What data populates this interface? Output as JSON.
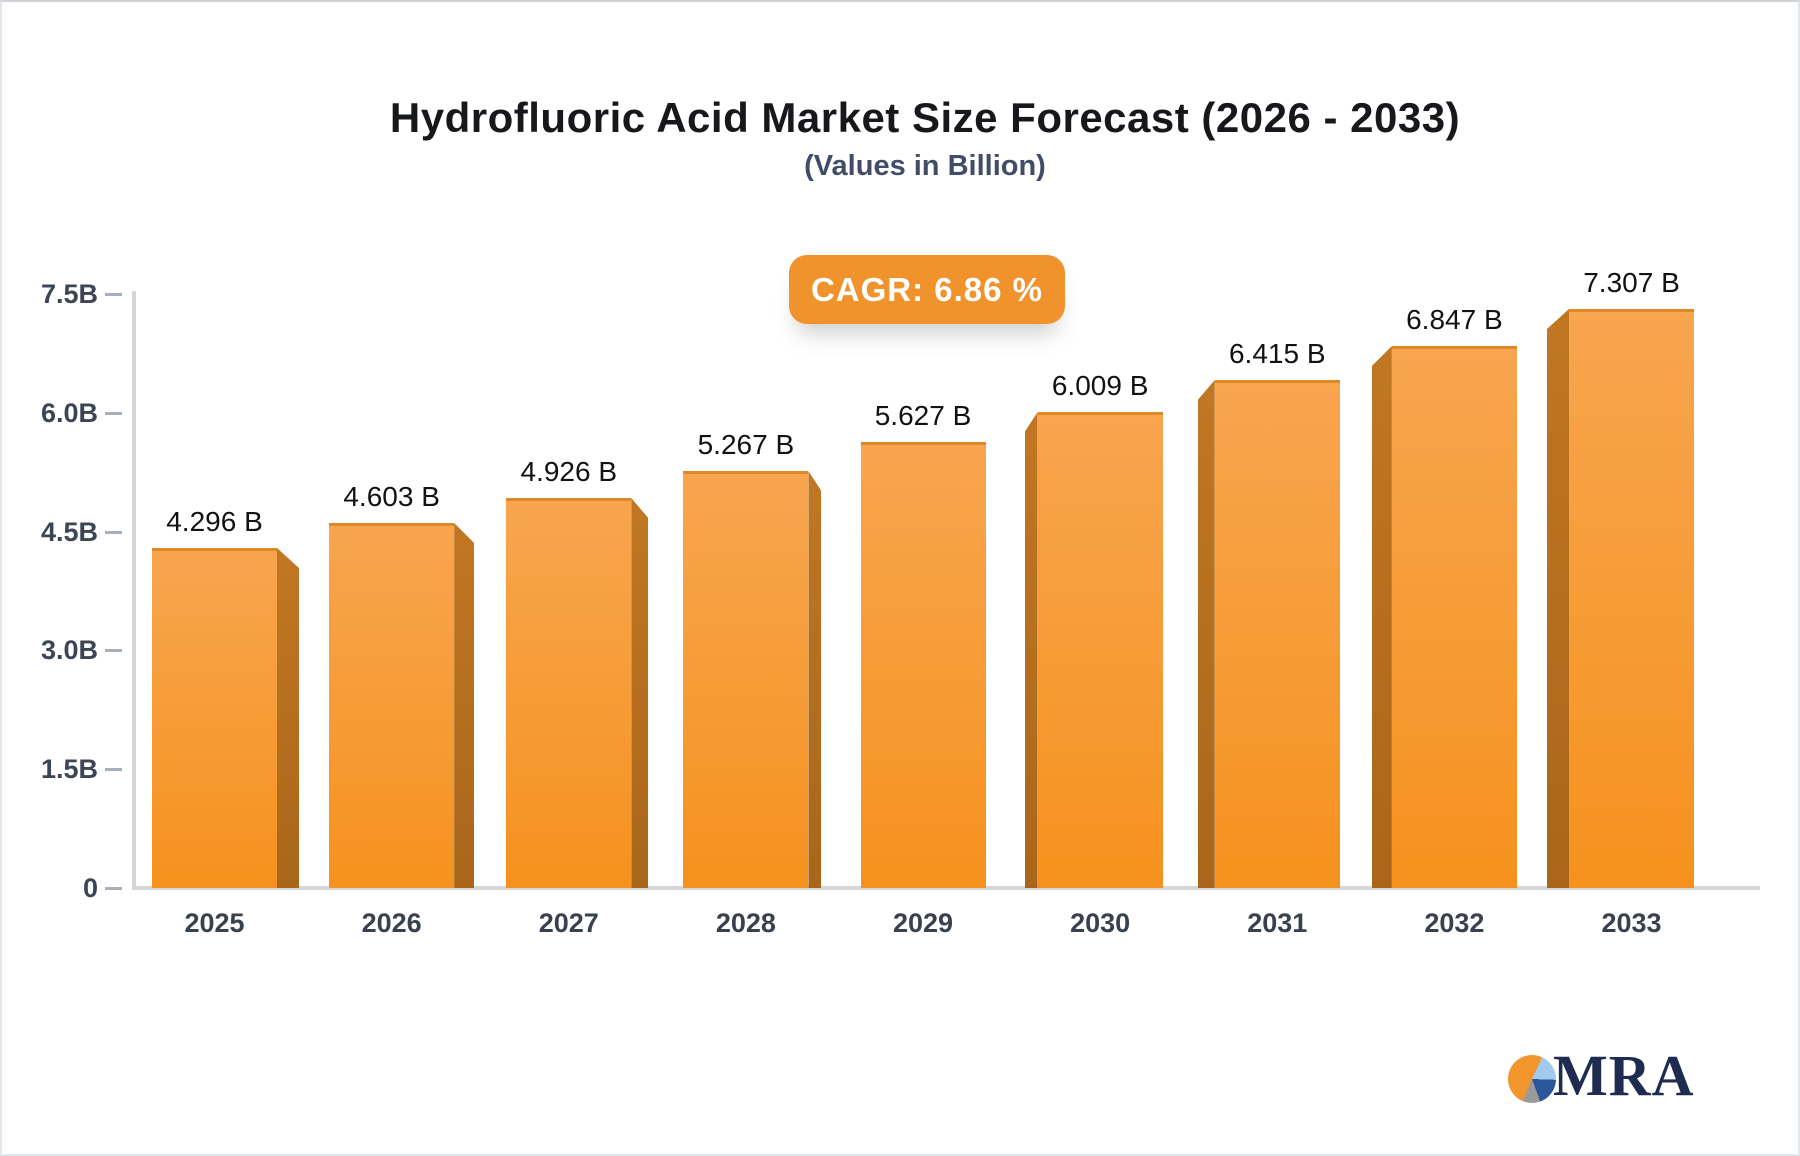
{
  "chart_data": {
    "type": "bar",
    "title": "Hydrofluoric Acid Market Size Forecast (2026 - 2033)",
    "subtitle": "(Values in Billion)",
    "annotation": "CAGR: 6.86 %",
    "categories": [
      "2025",
      "2026",
      "2027",
      "2028",
      "2029",
      "2030",
      "2031",
      "2032",
      "2033"
    ],
    "values": [
      4.296,
      4.603,
      4.926,
      5.267,
      5.627,
      6.009,
      6.415,
      6.847,
      7.307
    ],
    "value_labels": [
      "4.296 B",
      "4.603 B",
      "4.926 B",
      "5.267 B",
      "5.627 B",
      "6.009 B",
      "6.415 B",
      "6.847 B",
      "7.307 B"
    ],
    "ylim": [
      0,
      7.5
    ],
    "yticks": {
      "values": [
        0,
        1.5,
        3,
        4.5,
        6,
        7.5
      ],
      "labels": [
        "0",
        "1.5B",
        "3.0B",
        "4.5B",
        "6.0B",
        "7.5B"
      ]
    },
    "grid": false,
    "legend": false,
    "bar_style": "3d-extruded",
    "colors": {
      "face_top": "#F8A54F",
      "face_bottom": "#F5921E",
      "face_edge": "#DD8829",
      "side_top": "#C17722",
      "side_bottom": "#A9661A"
    }
  },
  "badge": {
    "background": "#F0932D",
    "text_color": "#FFFFFF"
  },
  "axis": {
    "line_color": "#D4D6DA",
    "tick_dash_color": "#A9AFB9",
    "tick_label_color": "#3C4554",
    "category_label_color": "#39414F"
  },
  "logo": {
    "text": "MRA",
    "text_color": "#1F2C52",
    "pie_orange": "#F2952D",
    "pie_light_blue": "#A3C9EC",
    "pie_dark_blue": "#2B5799",
    "pie_gray": "#9B9B9B"
  }
}
